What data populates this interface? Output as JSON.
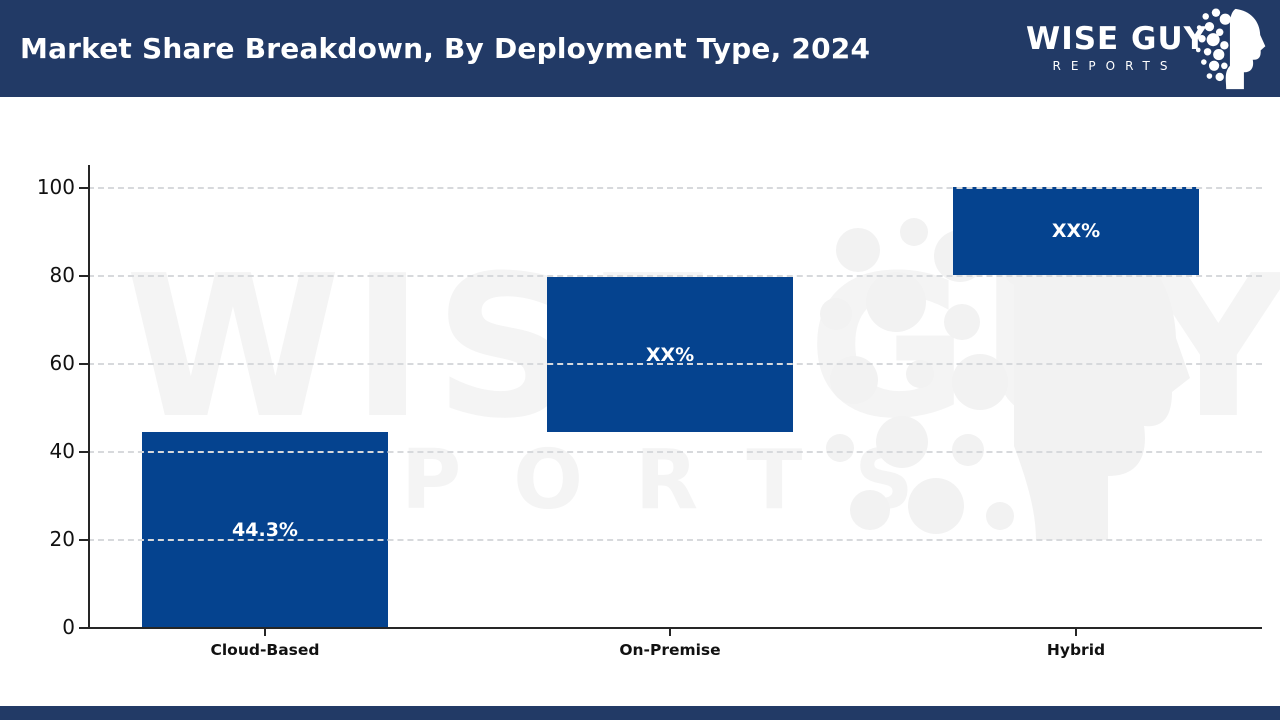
{
  "header": {
    "title": "Market Share Breakdown, By Deployment Type, 2024",
    "logo": {
      "line1": "WISE GUY",
      "line2": "REPORTS"
    }
  },
  "watermark": {
    "line1": "WISE GUY",
    "line2": "REPORTS"
  },
  "chart_data": {
    "type": "bar",
    "subtype": "waterfall-floating-bars",
    "title": "Market Share Breakdown, By Deployment Type, 2024",
    "categories": [
      "Cloud-Based",
      "On-Premise",
      "Hybrid"
    ],
    "segments": [
      {
        "category": "Cloud-Based",
        "start": 0,
        "end": 44.3,
        "label": "44.3%"
      },
      {
        "category": "On-Premise",
        "start": 44.3,
        "end": 79.5,
        "label": "XX%"
      },
      {
        "category": "Hybrid",
        "start": 80,
        "end": 100,
        "label": "XX%"
      }
    ],
    "y_ticks": [
      0,
      20,
      40,
      60,
      80,
      100
    ],
    "ylim": [
      0,
      105
    ],
    "xlabel": "",
    "ylabel": "",
    "grid": "horizontal-dashed",
    "grid_above_bars": true,
    "legend": "none",
    "bar_color": "#05438F",
    "bar_label_color": "#ffffff"
  },
  "colors": {
    "header_bg": "#223A66",
    "footer_bg": "#223A66",
    "bar": "#05438F",
    "gridline": "#d7d9dc",
    "axis": "#262626",
    "watermark": "#f4f4f4",
    "title_text": "#ffffff"
  }
}
